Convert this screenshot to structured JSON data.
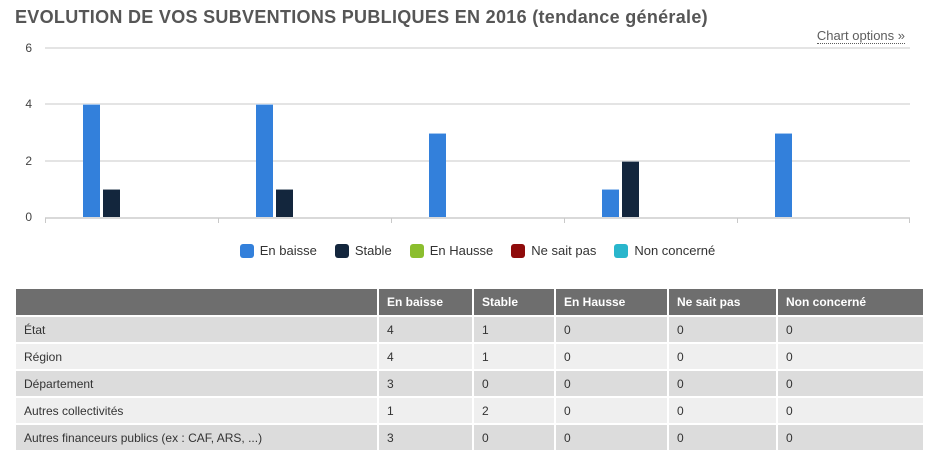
{
  "header": {
    "title": "EVOLUTION DE VOS SUBVENTIONS PUBLIQUES EN 2016 (tendance générale)",
    "chart_options_label": "Chart options »"
  },
  "colors": {
    "en_baisse": "#3380db",
    "stable": "#13263d",
    "en_hausse": "#8bbe2e",
    "ne_sait_pas": "#8f0b0b",
    "non_concerne": "#29b6cc",
    "table_header_bg": "#6e6e6e",
    "row_dark": "#dcdcdc",
    "row_light": "#efefef",
    "gridline": "#e4e4e4"
  },
  "chart_data": {
    "type": "bar",
    "title": "EVOLUTION DE VOS SUBVENTIONS PUBLIQUES EN 2016 (tendance générale)",
    "categories": [
      "État",
      "Région",
      "Département",
      "Autres collectivités",
      "Autres financeurs publics (ex : CAF, ARS, ...)"
    ],
    "series": [
      {
        "name": "En baisse",
        "color": "#3380db",
        "values": [
          4,
          4,
          3,
          1,
          3
        ]
      },
      {
        "name": "Stable",
        "color": "#13263d",
        "values": [
          1,
          1,
          0,
          2,
          0
        ]
      },
      {
        "name": "En Hausse",
        "color": "#8bbe2e",
        "values": [
          0,
          0,
          0,
          0,
          0
        ]
      },
      {
        "name": "Ne sait pas",
        "color": "#8f0b0b",
        "values": [
          0,
          0,
          0,
          0,
          0
        ]
      },
      {
        "name": "Non concerné",
        "color": "#29b6cc",
        "values": [
          0,
          0,
          0,
          0,
          0
        ]
      }
    ],
    "xlabel": "",
    "ylabel": "",
    "ylim": [
      0,
      6
    ],
    "yticks": [
      0,
      2,
      4,
      6
    ],
    "grid": true,
    "legend_position": "bottom",
    "x_category_labels_visible": false
  },
  "table": {
    "columns": [
      "",
      "En baisse",
      "Stable",
      "En Hausse",
      "Ne sait pas",
      "Non concerné"
    ],
    "rows": [
      {
        "label": "État",
        "values": [
          4,
          1,
          0,
          0,
          0
        ]
      },
      {
        "label": "Région",
        "values": [
          4,
          1,
          0,
          0,
          0
        ]
      },
      {
        "label": "Département",
        "values": [
          3,
          0,
          0,
          0,
          0
        ]
      },
      {
        "label": "Autres collectivités",
        "values": [
          1,
          2,
          0,
          0,
          0
        ]
      },
      {
        "label": "Autres financeurs publics (ex : CAF, ARS, ...)",
        "values": [
          3,
          0,
          0,
          0,
          0
        ]
      }
    ]
  }
}
